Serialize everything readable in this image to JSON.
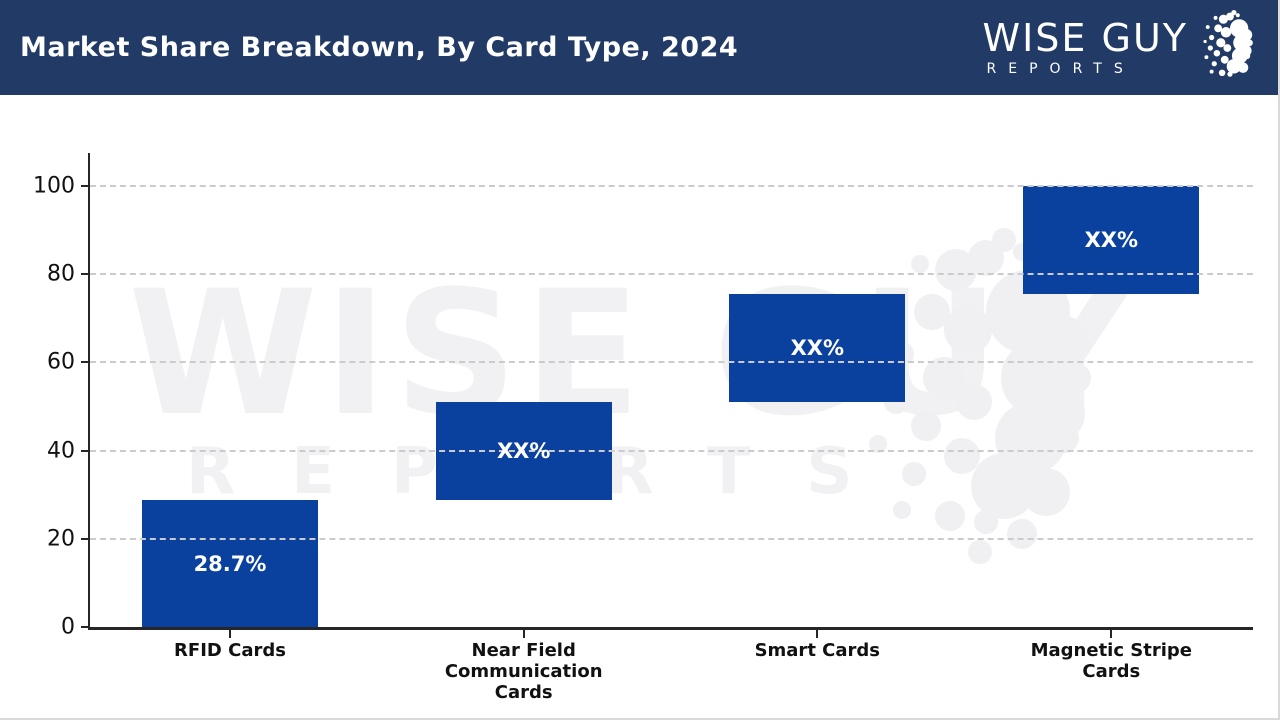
{
  "header": {
    "title": "Market Share Breakdown, By Card Type, 2024",
    "bg_color": "#213a66",
    "logo": {
      "wordmark": "WISE GUY",
      "subtext": "REPORTS"
    }
  },
  "watermark": {
    "wordmark": "WISE GUY",
    "subtext": "REPORTS"
  },
  "chart_data": {
    "type": "bar",
    "subtype": "waterfall",
    "title": "Market Share Breakdown, By Card Type, 2024",
    "categories": [
      "RFID Cards",
      "Near Field Communication Cards",
      "Smart Cards",
      "Magnetic Stripe Cards"
    ],
    "category_lines": [
      [
        "RFID Cards"
      ],
      [
        "Near Field",
        "Communication",
        "Cards"
      ],
      [
        "Smart Cards"
      ],
      [
        "Magnetic Stripe",
        "Cards"
      ]
    ],
    "segments": [
      {
        "category": "RFID Cards",
        "start": 0,
        "end": 28.7,
        "label": "28.7%"
      },
      {
        "category": "Near Field Communication Cards",
        "start": 28.7,
        "end": 51,
        "label": "XX%"
      },
      {
        "category": "Smart Cards",
        "start": 51,
        "end": 75.5,
        "label": "XX%"
      },
      {
        "category": "Magnetic Stripe Cards",
        "start": 75.5,
        "end": 100,
        "label": "XX%"
      }
    ],
    "yticks": [
      0,
      20,
      40,
      60,
      80,
      100
    ],
    "ylim": [
      0,
      107
    ],
    "xlabel": "",
    "ylabel": "",
    "grid": "horizontal-dashed",
    "legend": "none",
    "bar_color": "#0a409e",
    "bar_label_color": "#ffffff",
    "axis_color": "#262626",
    "grid_color": "#cbcbcb"
  }
}
